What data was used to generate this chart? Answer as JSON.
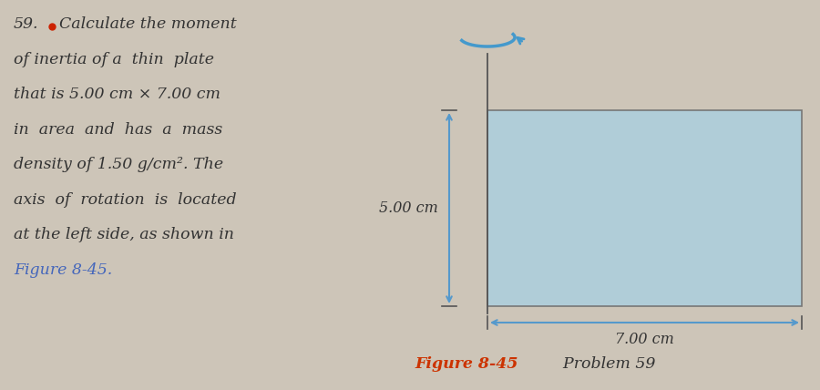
{
  "bg_color": "#cdc5b8",
  "text_problem_number": "59.",
  "bullet_color": "#cc2200",
  "line1": "Calculate the moment",
  "line2": "of inertia of a  thin  plate",
  "line3": "that is 5.00 cm × 7.00 cm",
  "line4": "in  area  and  has  a  mass",
  "line5": "density of 1.50 g/cm². The",
  "line6": "axis  of  rotation  is  located",
  "line7": "at the left side, as shown in",
  "line8": "Figure 8-45.",
  "figure_label": "Figure 8-45",
  "figure_label_color": "#cc3300",
  "problem_label": "  Problem 59",
  "rect_fill_color": "#b0cdd8",
  "rect_edge_color": "#777777",
  "arrow_color": "#5599cc",
  "dim_label_5": "5.00 cm",
  "dim_label_7": "7.00 cm",
  "axis_line_color": "#555555",
  "rotation_arrow_color": "#4499cc",
  "text_color": "#333333",
  "fig8_color": "#8B4513"
}
